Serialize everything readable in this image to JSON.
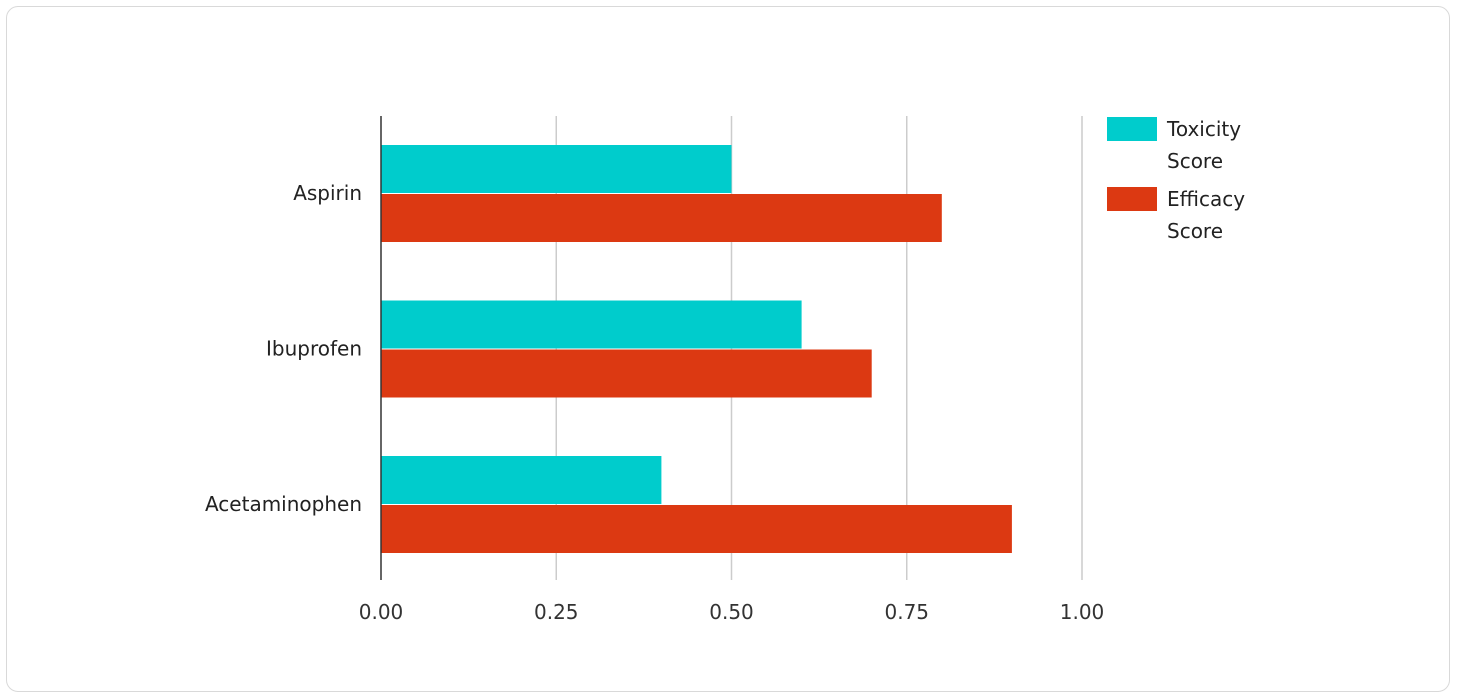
{
  "chart_data": {
    "type": "bar",
    "orientation": "horizontal",
    "categories": [
      "Aspirin",
      "Ibuprofen",
      "Acetaminophen"
    ],
    "series": [
      {
        "name": "Toxicity Score",
        "values": [
          0.5,
          0.6,
          0.4
        ],
        "color": "#00cccc"
      },
      {
        "name": "Efficacy Score",
        "values": [
          0.8,
          0.7,
          0.9
        ],
        "color": "#dc3912"
      }
    ],
    "xticks": [
      "0.00",
      "0.25",
      "0.50",
      "0.75",
      "1.00"
    ],
    "xlim": [
      0,
      1
    ],
    "grid": true,
    "legend_position": "right",
    "legend": [
      {
        "lines": [
          "Toxicity",
          "Score"
        ],
        "color": "#00cccc"
      },
      {
        "lines": [
          "Efficacy",
          "Score"
        ],
        "color": "#dc3912"
      }
    ]
  }
}
